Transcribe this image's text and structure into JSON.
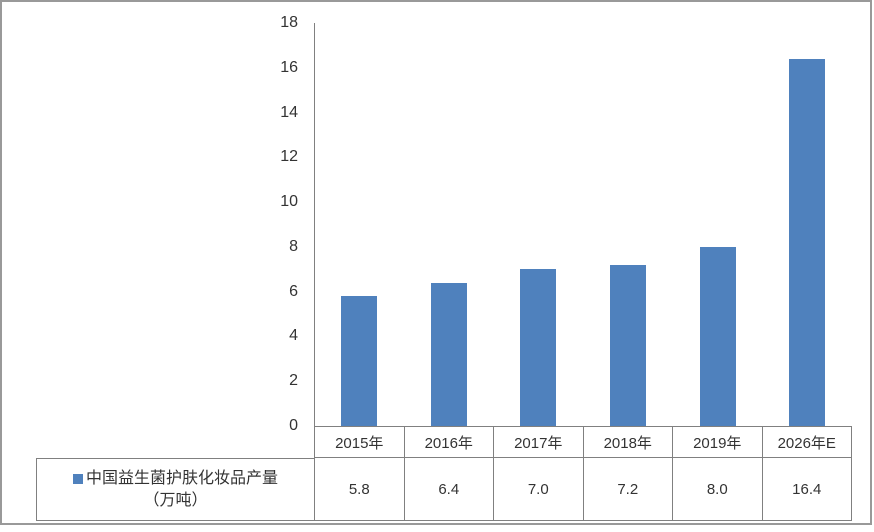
{
  "chart_data": {
    "type": "bar",
    "title": "",
    "xlabel": "",
    "ylabel": "",
    "categories": [
      "2015年",
      "2016年",
      "2017年",
      "2018年",
      "2019年",
      "2026年E"
    ],
    "series": [
      {
        "name": "中国益生菌护肤化妆品产量（万吨）",
        "values": [
          5.8,
          6.4,
          7.0,
          7.2,
          8.0,
          16.4
        ],
        "value_labels": [
          "5.8",
          "6.4",
          "7.0",
          "7.2",
          "8.0",
          "16.4"
        ]
      }
    ],
    "ylim": [
      0,
      18
    ],
    "yticks": [
      0,
      2,
      4,
      6,
      8,
      10,
      12,
      14,
      16,
      18
    ],
    "grid": false,
    "legend_position": "bottom-left",
    "bar_color": "#4F81BD",
    "axis_color": "#808080",
    "table_under_axis": true
  },
  "legend": {
    "marker_color": "#4F81BD",
    "label_line1": "中国益生菌护肤化妆品产量",
    "label_line2": "（万吨）"
  },
  "colors": {
    "bar": "#4F81BD",
    "border": "#808080",
    "frame": "#999999",
    "text": "#333333",
    "background": "#ffffff"
  }
}
